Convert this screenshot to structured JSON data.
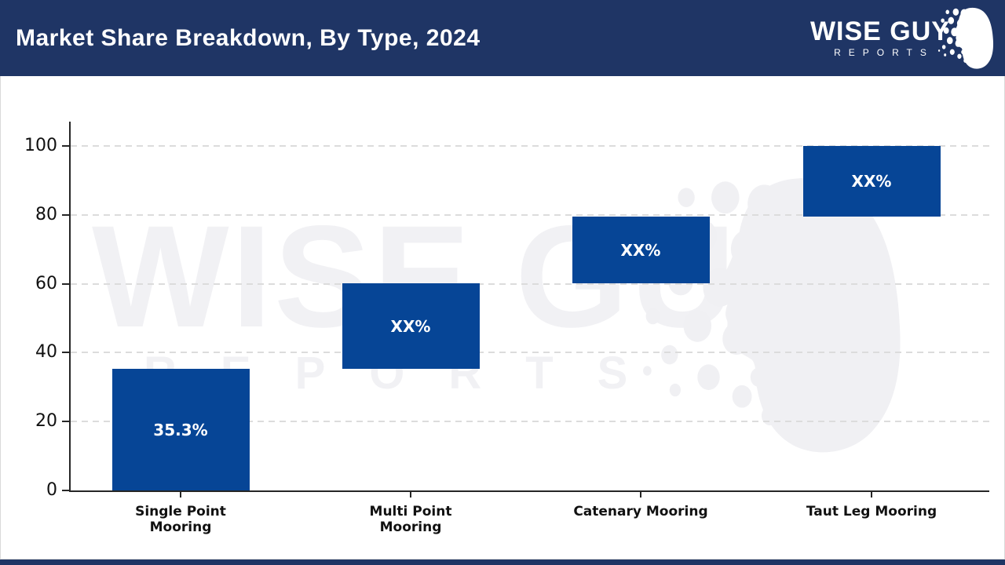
{
  "header": {
    "title": "Market Share Breakdown, By Type, 2024",
    "brand": {
      "name": "WISE GUY",
      "sub": "REPORTS"
    }
  },
  "watermark": {
    "line1": "WISE GUY",
    "line2": "REPORTS"
  },
  "colors": {
    "header_bg": "#1f3565",
    "footer_bg": "#1f3565",
    "bar_blue": "#064596",
    "bar_label_text": "#ffffff",
    "grid_gray": "#dcdcdc",
    "watermark_gray": "#f1f1f4"
  },
  "chart_data": {
    "type": "bar",
    "subtype": "waterfall",
    "title": "Market Share Breakdown, By Type, 2024",
    "categories": [
      "Single Point Mooring",
      "Multi Point Mooring",
      "Catenary Mooring",
      "Taut Leg Mooring"
    ],
    "segments": [
      {
        "category": "Single Point\nMooring",
        "start": 0,
        "end": 35.3,
        "label": "35.3%"
      },
      {
        "category": "Multi Point\nMooring",
        "start": 35.3,
        "end": 60.1,
        "label": "XX%"
      },
      {
        "category": "Catenary Mooring",
        "start": 60.1,
        "end": 79.4,
        "label": "XX%"
      },
      {
        "category": "Taut Leg Mooring",
        "start": 79.4,
        "end": 100,
        "label": "XX%"
      }
    ],
    "yticks": [
      0,
      20,
      40,
      60,
      80,
      100
    ],
    "ylim": [
      0,
      107
    ],
    "xlabel": "",
    "ylabel": "",
    "grid": "horizontal-dashed",
    "legend": "none",
    "bar_color": "#064596"
  }
}
